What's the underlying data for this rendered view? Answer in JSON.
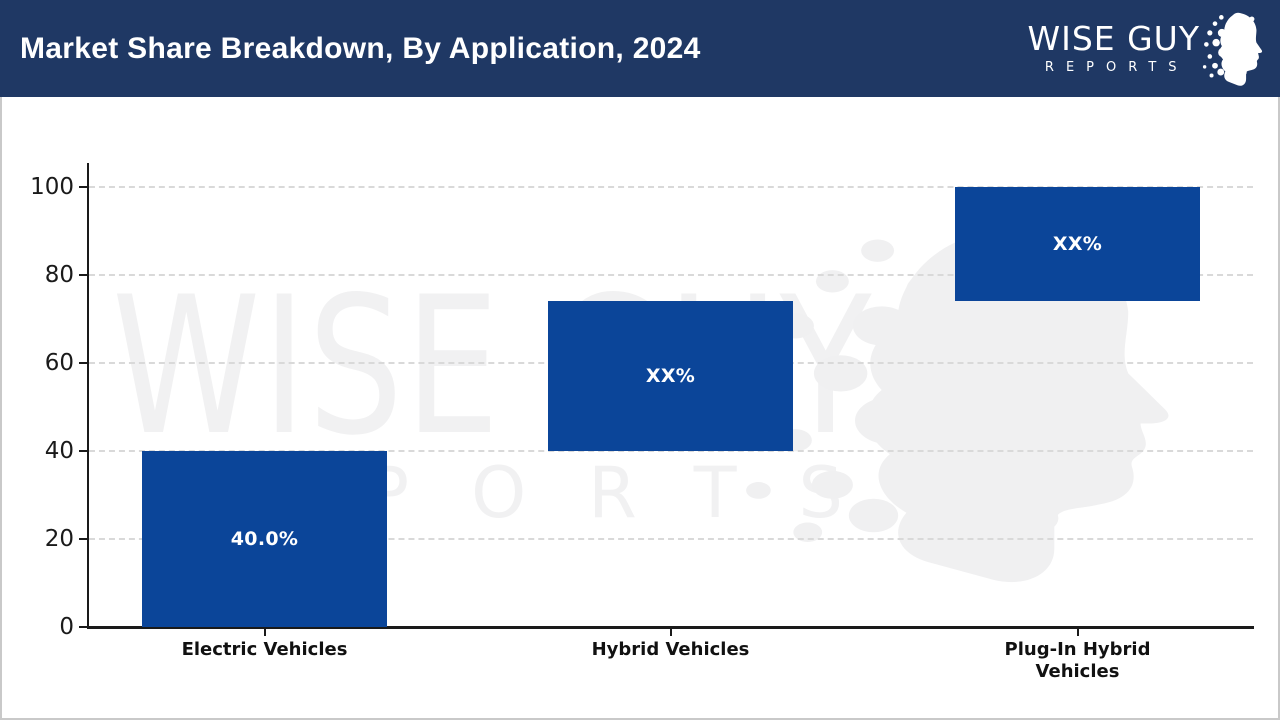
{
  "header": {
    "title": "Market Share Breakdown, By Application, 2024",
    "logo": {
      "line1": "WISE GUY",
      "line2": "REPORTS"
    }
  },
  "watermark": {
    "line1": "WISE GUY",
    "line2": "REPORTS"
  },
  "chart_data": {
    "type": "bar",
    "subtype": "stacked-waterfall",
    "title": "Market Share Breakdown, By Application, 2024",
    "categories": [
      "Electric Vehicles",
      "Hybrid Vehicles",
      "Plug-In Hybrid Vehicles"
    ],
    "segments": [
      {
        "category": "Electric Vehicles",
        "start": 0,
        "end": 40,
        "label": "40.0%"
      },
      {
        "category": "Hybrid Vehicles",
        "start": 40,
        "end": 74,
        "label": "XX%"
      },
      {
        "category": "Plug-In Hybrid Vehicles",
        "start": 74,
        "end": 100,
        "label": "XX%"
      }
    ],
    "xlabel": "",
    "ylabel": "",
    "ylim": [
      0,
      100
    ],
    "yticks": [
      0,
      20,
      40,
      60,
      80,
      100
    ],
    "grid": "horizontal-dashed",
    "legend": false,
    "colors": {
      "header_bg": "#1f3864",
      "bar": "#0b4599",
      "bar_label": "#ffffff",
      "axis": "#1a1a1a",
      "gridline": "#d9d9d9",
      "watermark": "#f1f1f2"
    }
  }
}
